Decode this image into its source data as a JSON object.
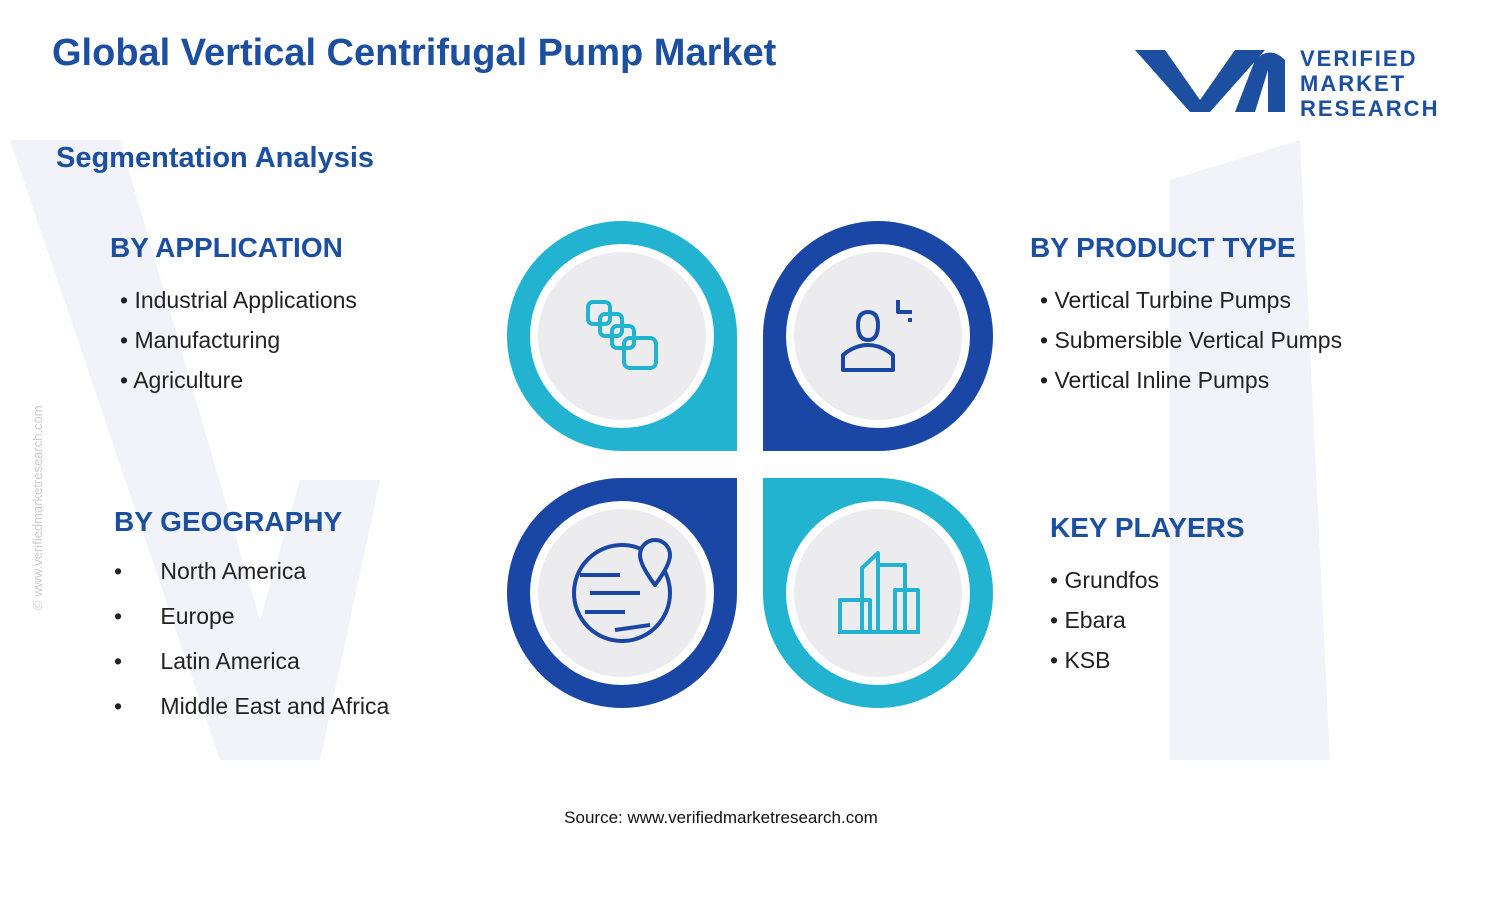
{
  "header": {
    "title": "Global Vertical Centrifugal Pump Market",
    "subtitle": "Segmentation Analysis",
    "logo": [
      "VERIFIED",
      "MARKET",
      "RESEARCH"
    ]
  },
  "watermark": "© www.verifiedmarketresearch.com",
  "segments": [
    {
      "title": "BY APPLICATION",
      "items": [
        "Industrial Applications",
        "Manufacturing",
        "Agriculture"
      ]
    },
    {
      "title": "BY PRODUCT TYPE",
      "items": [
        "Vertical Turbine Pumps",
        "Submersible Vertical Pumps",
        "Vertical Inline Pumps"
      ]
    },
    {
      "title": "BY GEOGRAPHY",
      "items": [
        "North America",
        "Europe",
        "Latin America",
        "Middle East and Africa"
      ]
    },
    {
      "title": "KEY PLAYERS",
      "items": [
        "Grundfos",
        "Ebara",
        "KSB"
      ]
    }
  ],
  "source": "Source: www.verifiedmarketresearch.com"
}
